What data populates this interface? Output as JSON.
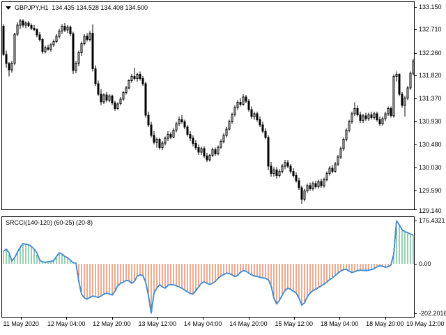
{
  "header": {
    "symbol": "GBPJPY,H1",
    "ohlc": "134.435 134.528 134.408 134.500",
    "dropdown_icon": "triangle-down"
  },
  "indicator": {
    "label": "SRCCI(140-120) (60-25) (20-8)"
  },
  "axes": {
    "price_labels": [
      "133.150",
      "132.710",
      "132.260",
      "131.820",
      "131.370",
      "130.930",
      "130.480",
      "130.030",
      "129.590",
      "129.140"
    ],
    "indicator_labels": [
      "176.4321",
      "0.00",
      "-202.2016"
    ],
    "time_labels": [
      "11 May 2020",
      "12 May 04:00",
      "12 May 20:00",
      "13 May 12:00",
      "14 May 04:00",
      "14 May 20:00",
      "15 May 12:00",
      "18 May 04:00",
      "18 May 20:00",
      "19 May 12:00"
    ]
  },
  "colors": {
    "background": "#ffffff",
    "frame": "#000000",
    "bull_candle": "#ffffff",
    "bear_candle": "#000000",
    "candle_outline": "#000000",
    "histogram_positive": "#2FA05F",
    "histogram_negative": "#E2531D",
    "indicator_line": "#4A90D2",
    "text": "#000000"
  },
  "chart_data": [
    {
      "type": "candlestick",
      "title": "GBPJPY,H1 134.435 134.528 134.408 134.500",
      "symbol": "GBPJPY",
      "timeframe": "H1",
      "grid": false,
      "ylim": [
        129.14,
        133.15
      ],
      "y_tick_labels": [
        133.15,
        132.71,
        132.26,
        131.82,
        131.37,
        130.93,
        130.48,
        130.03,
        129.59,
        129.14
      ],
      "x_tick_labels": [
        "11 May 2020",
        "12 May 04:00",
        "12 May 20:00",
        "13 May 12:00",
        "14 May 04:00",
        "14 May 20:00",
        "15 May 12:00",
        "18 May 04:00",
        "18 May 20:00",
        "19 May 12:00"
      ],
      "candles_ohlc": [
        [
          132.78,
          132.82,
          132.2,
          132.23
        ],
        [
          132.23,
          132.3,
          131.97,
          132.05
        ],
        [
          132.05,
          132.08,
          131.8,
          131.93
        ],
        [
          131.93,
          132.1,
          131.88,
          132.06
        ],
        [
          132.06,
          132.65,
          132.02,
          132.62
        ],
        [
          132.62,
          132.85,
          132.58,
          132.8
        ],
        [
          132.8,
          132.92,
          132.72,
          132.88
        ],
        [
          132.88,
          132.91,
          132.75,
          132.8
        ],
        [
          132.8,
          132.87,
          132.74,
          132.84
        ],
        [
          132.84,
          132.88,
          132.76,
          132.79
        ],
        [
          132.79,
          132.83,
          132.7,
          132.74
        ],
        [
          132.74,
          132.8,
          132.68,
          132.71
        ],
        [
          132.71,
          132.74,
          132.56,
          132.61
        ],
        [
          132.61,
          132.66,
          132.48,
          132.52
        ],
        [
          132.52,
          132.55,
          132.24,
          132.28
        ],
        [
          132.28,
          132.4,
          132.25,
          132.36
        ],
        [
          132.36,
          132.42,
          132.3,
          132.33
        ],
        [
          132.33,
          132.45,
          132.28,
          132.42
        ],
        [
          132.42,
          132.52,
          132.38,
          132.48
        ],
        [
          132.48,
          132.62,
          132.45,
          132.58
        ],
        [
          132.58,
          132.72,
          132.54,
          132.68
        ],
        [
          132.68,
          132.82,
          132.63,
          132.78
        ],
        [
          132.78,
          132.84,
          132.66,
          132.7
        ],
        [
          132.7,
          132.8,
          132.64,
          132.76
        ],
        [
          132.76,
          132.79,
          132.58,
          132.63
        ],
        [
          132.63,
          132.67,
          131.85,
          131.92
        ],
        [
          131.92,
          132.1,
          131.86,
          132.06
        ],
        [
          132.06,
          132.3,
          132.0,
          132.26
        ],
        [
          132.26,
          132.48,
          132.2,
          132.44
        ],
        [
          132.44,
          132.62,
          132.4,
          132.58
        ],
        [
          132.58,
          132.64,
          132.48,
          132.52
        ],
        [
          132.52,
          132.68,
          132.48,
          132.64
        ],
        [
          132.64,
          132.81,
          131.9,
          131.95
        ],
        [
          131.95,
          132.02,
          131.62,
          131.66
        ],
        [
          131.66,
          131.72,
          131.42,
          131.46
        ],
        [
          131.46,
          131.55,
          131.25,
          131.31
        ],
        [
          131.31,
          131.48,
          131.27,
          131.44
        ],
        [
          131.44,
          131.5,
          131.3,
          131.34
        ],
        [
          131.34,
          131.46,
          131.3,
          131.42
        ],
        [
          131.42,
          131.45,
          131.25,
          131.29
        ],
        [
          131.29,
          131.33,
          131.13,
          131.18
        ],
        [
          131.18,
          131.3,
          131.15,
          131.27
        ],
        [
          131.27,
          131.4,
          131.24,
          131.36
        ],
        [
          131.36,
          131.52,
          131.33,
          131.49
        ],
        [
          131.49,
          131.62,
          131.45,
          131.58
        ],
        [
          131.58,
          131.75,
          131.55,
          131.72
        ],
        [
          131.72,
          131.85,
          131.68,
          131.8
        ],
        [
          131.8,
          131.97,
          131.72,
          131.76
        ],
        [
          131.76,
          131.88,
          131.7,
          131.84
        ],
        [
          131.84,
          131.9,
          131.72,
          131.76
        ],
        [
          131.76,
          131.81,
          131.62,
          131.66
        ],
        [
          131.66,
          131.7,
          131.0,
          131.05
        ],
        [
          131.05,
          131.12,
          130.82,
          130.86
        ],
        [
          130.86,
          130.92,
          130.62,
          130.66
        ],
        [
          130.66,
          130.74,
          130.48,
          130.52
        ],
        [
          130.52,
          130.62,
          130.42,
          130.58
        ],
        [
          130.58,
          130.61,
          130.38,
          130.42
        ],
        [
          130.42,
          130.55,
          130.37,
          130.51
        ],
        [
          130.51,
          130.64,
          130.46,
          130.6
        ],
        [
          130.6,
          130.74,
          130.55,
          130.68
        ],
        [
          130.68,
          130.72,
          130.58,
          130.62
        ],
        [
          130.62,
          130.8,
          130.6,
          130.76
        ],
        [
          130.76,
          130.92,
          130.72,
          130.88
        ],
        [
          130.88,
          131.02,
          130.84,
          130.96
        ],
        [
          130.96,
          131.05,
          130.88,
          130.92
        ],
        [
          130.92,
          130.96,
          130.78,
          130.82
        ],
        [
          130.82,
          130.86,
          130.64,
          130.68
        ],
        [
          130.68,
          130.74,
          130.55,
          130.6
        ],
        [
          130.6,
          130.66,
          130.45,
          130.5
        ],
        [
          130.5,
          130.56,
          130.37,
          130.42
        ],
        [
          130.42,
          130.48,
          130.28,
          130.33
        ],
        [
          130.33,
          130.44,
          130.28,
          130.4
        ],
        [
          130.4,
          130.45,
          130.22,
          130.26
        ],
        [
          130.26,
          130.32,
          130.14,
          130.18
        ],
        [
          130.18,
          130.3,
          130.15,
          130.27
        ],
        [
          130.27,
          130.42,
          130.24,
          130.38
        ],
        [
          130.38,
          130.42,
          130.26,
          130.3
        ],
        [
          130.3,
          130.46,
          130.27,
          130.43
        ],
        [
          130.43,
          130.58,
          130.4,
          130.54
        ],
        [
          130.54,
          130.7,
          130.5,
          130.66
        ],
        [
          130.66,
          130.82,
          130.62,
          130.78
        ],
        [
          130.78,
          130.96,
          130.75,
          130.92
        ],
        [
          130.92,
          131.1,
          130.88,
          131.06
        ],
        [
          131.06,
          131.24,
          131.02,
          131.2
        ],
        [
          131.2,
          131.34,
          131.15,
          131.3
        ],
        [
          131.3,
          131.38,
          131.22,
          131.26
        ],
        [
          131.26,
          131.46,
          131.23,
          131.4
        ],
        [
          131.4,
          131.44,
          131.28,
          131.32
        ],
        [
          131.32,
          131.36,
          131.12,
          131.16
        ],
        [
          131.16,
          131.22,
          130.98,
          131.02
        ],
        [
          131.02,
          131.12,
          130.96,
          131.08
        ],
        [
          131.08,
          131.12,
          130.92,
          130.96
        ],
        [
          130.96,
          131.02,
          130.82,
          130.86
        ],
        [
          130.86,
          130.92,
          130.7,
          130.74
        ],
        [
          130.74,
          130.8,
          130.58,
          130.62
        ],
        [
          130.62,
          130.66,
          129.98,
          130.06
        ],
        [
          130.06,
          130.14,
          129.86,
          129.92
        ],
        [
          129.92,
          130.04,
          129.86,
          129.99
        ],
        [
          129.99,
          130.04,
          129.82,
          129.88
        ],
        [
          129.88,
          130.0,
          129.84,
          129.96
        ],
        [
          129.96,
          130.1,
          129.92,
          130.06
        ],
        [
          130.06,
          130.18,
          130.0,
          130.13
        ],
        [
          130.13,
          130.18,
          130.02,
          130.06
        ],
        [
          130.06,
          130.1,
          129.92,
          129.96
        ],
        [
          129.96,
          130.02,
          129.84,
          129.88
        ],
        [
          129.88,
          129.94,
          129.74,
          129.78
        ],
        [
          129.78,
          129.84,
          129.6,
          129.64
        ],
        [
          129.64,
          129.68,
          129.33,
          129.42
        ],
        [
          129.42,
          129.62,
          129.38,
          129.58
        ],
        [
          129.58,
          129.72,
          129.54,
          129.68
        ],
        [
          129.68,
          129.74,
          129.58,
          129.62
        ],
        [
          129.62,
          129.76,
          129.58,
          129.72
        ],
        [
          129.72,
          129.78,
          129.62,
          129.66
        ],
        [
          129.66,
          129.8,
          129.62,
          129.76
        ],
        [
          129.76,
          129.82,
          129.64,
          129.68
        ],
        [
          129.68,
          129.84,
          129.64,
          129.8
        ],
        [
          129.8,
          129.96,
          129.76,
          129.92
        ],
        [
          129.92,
          130.06,
          129.88,
          130.02
        ],
        [
          130.02,
          130.08,
          129.92,
          129.96
        ],
        [
          129.96,
          130.14,
          129.93,
          130.1
        ],
        [
          130.1,
          130.28,
          130.06,
          130.24
        ],
        [
          130.24,
          130.44,
          130.2,
          130.4
        ],
        [
          130.4,
          130.62,
          130.36,
          130.58
        ],
        [
          130.58,
          130.8,
          130.54,
          130.76
        ],
        [
          130.76,
          130.96,
          130.72,
          130.92
        ],
        [
          130.92,
          131.12,
          130.88,
          131.08
        ],
        [
          131.08,
          131.3,
          131.04,
          131.18
        ],
        [
          131.18,
          131.24,
          131.02,
          131.06
        ],
        [
          131.06,
          131.12,
          130.9,
          130.95
        ],
        [
          130.95,
          131.08,
          130.9,
          131.04
        ],
        [
          131.04,
          131.1,
          130.94,
          130.98
        ],
        [
          130.98,
          131.1,
          130.94,
          131.06
        ],
        [
          131.06,
          131.12,
          130.96,
          131.0
        ],
        [
          131.0,
          131.12,
          130.96,
          131.08
        ],
        [
          131.08,
          131.12,
          130.92,
          130.96
        ],
        [
          130.96,
          131.02,
          130.84,
          130.88
        ],
        [
          130.88,
          131.02,
          130.85,
          130.98
        ],
        [
          130.98,
          131.12,
          130.94,
          131.08
        ],
        [
          131.08,
          131.22,
          131.04,
          131.18
        ],
        [
          131.18,
          131.22,
          131.0,
          131.04
        ],
        [
          131.04,
          131.84,
          131.0,
          131.8
        ],
        [
          131.8,
          131.9,
          131.7,
          131.84
        ],
        [
          131.84,
          131.86,
          131.42,
          131.46
        ],
        [
          131.46,
          131.5,
          131.19,
          131.24
        ],
        [
          131.24,
          131.42,
          131.02,
          131.38
        ],
        [
          131.38,
          131.62,
          131.34,
          131.58
        ],
        [
          131.58,
          131.9,
          131.54,
          131.86
        ],
        [
          131.86,
          132.14,
          131.82,
          132.1
        ]
      ]
    },
    {
      "type": "bar",
      "title": "SRCCI(140-120) (60-25) (20-8)",
      "ylim": [
        -202.2016,
        176.4321
      ],
      "y_tick_labels": [
        176.4321,
        0.0,
        -202.2016
      ],
      "zero_line": 0,
      "line_overlay": true,
      "values": [
        52,
        60,
        45,
        12,
        25,
        48,
        68,
        83,
        80,
        79,
        72,
        60,
        45,
        15,
        8,
        6,
        8,
        10,
        12,
        30,
        45,
        40,
        30,
        25,
        15,
        5,
        3,
        -70,
        -125,
        -140,
        -145,
        -138,
        -132,
        -135,
        -138,
        -132,
        -125,
        -120,
        -124,
        -128,
        -112,
        -90,
        -80,
        -75,
        -68,
        -70,
        -80,
        -72,
        -50,
        -45,
        -48,
        -75,
        -130,
        -202.2016,
        -120,
        -100,
        -86,
        -95,
        -100,
        -88,
        -85,
        -86,
        -90,
        -95,
        -100,
        -108,
        -115,
        -122,
        -124,
        -110,
        -95,
        -80,
        -74,
        -80,
        -85,
        -80,
        -72,
        -60,
        -50,
        -44,
        -38,
        -40,
        -45,
        -52,
        -48,
        -35,
        -28,
        -30,
        -38,
        -45,
        -50,
        -52,
        -55,
        -58,
        -60,
        -65,
        -90,
        -140,
        -165,
        -150,
        -128,
        -110,
        -100,
        -105,
        -112,
        -120,
        -140,
        -170,
        -160,
        -135,
        -120,
        -110,
        -104,
        -98,
        -90,
        -84,
        -75,
        -65,
        -58,
        -48,
        -38,
        -30,
        -24,
        -22,
        -30,
        -36,
        -32,
        -28,
        -26,
        -27,
        -28,
        -26,
        -24,
        -20,
        -12,
        -8,
        -10,
        -14,
        -12,
        -5,
        40,
        176.4321,
        160,
        140,
        132,
        128,
        122,
        118
      ]
    }
  ]
}
